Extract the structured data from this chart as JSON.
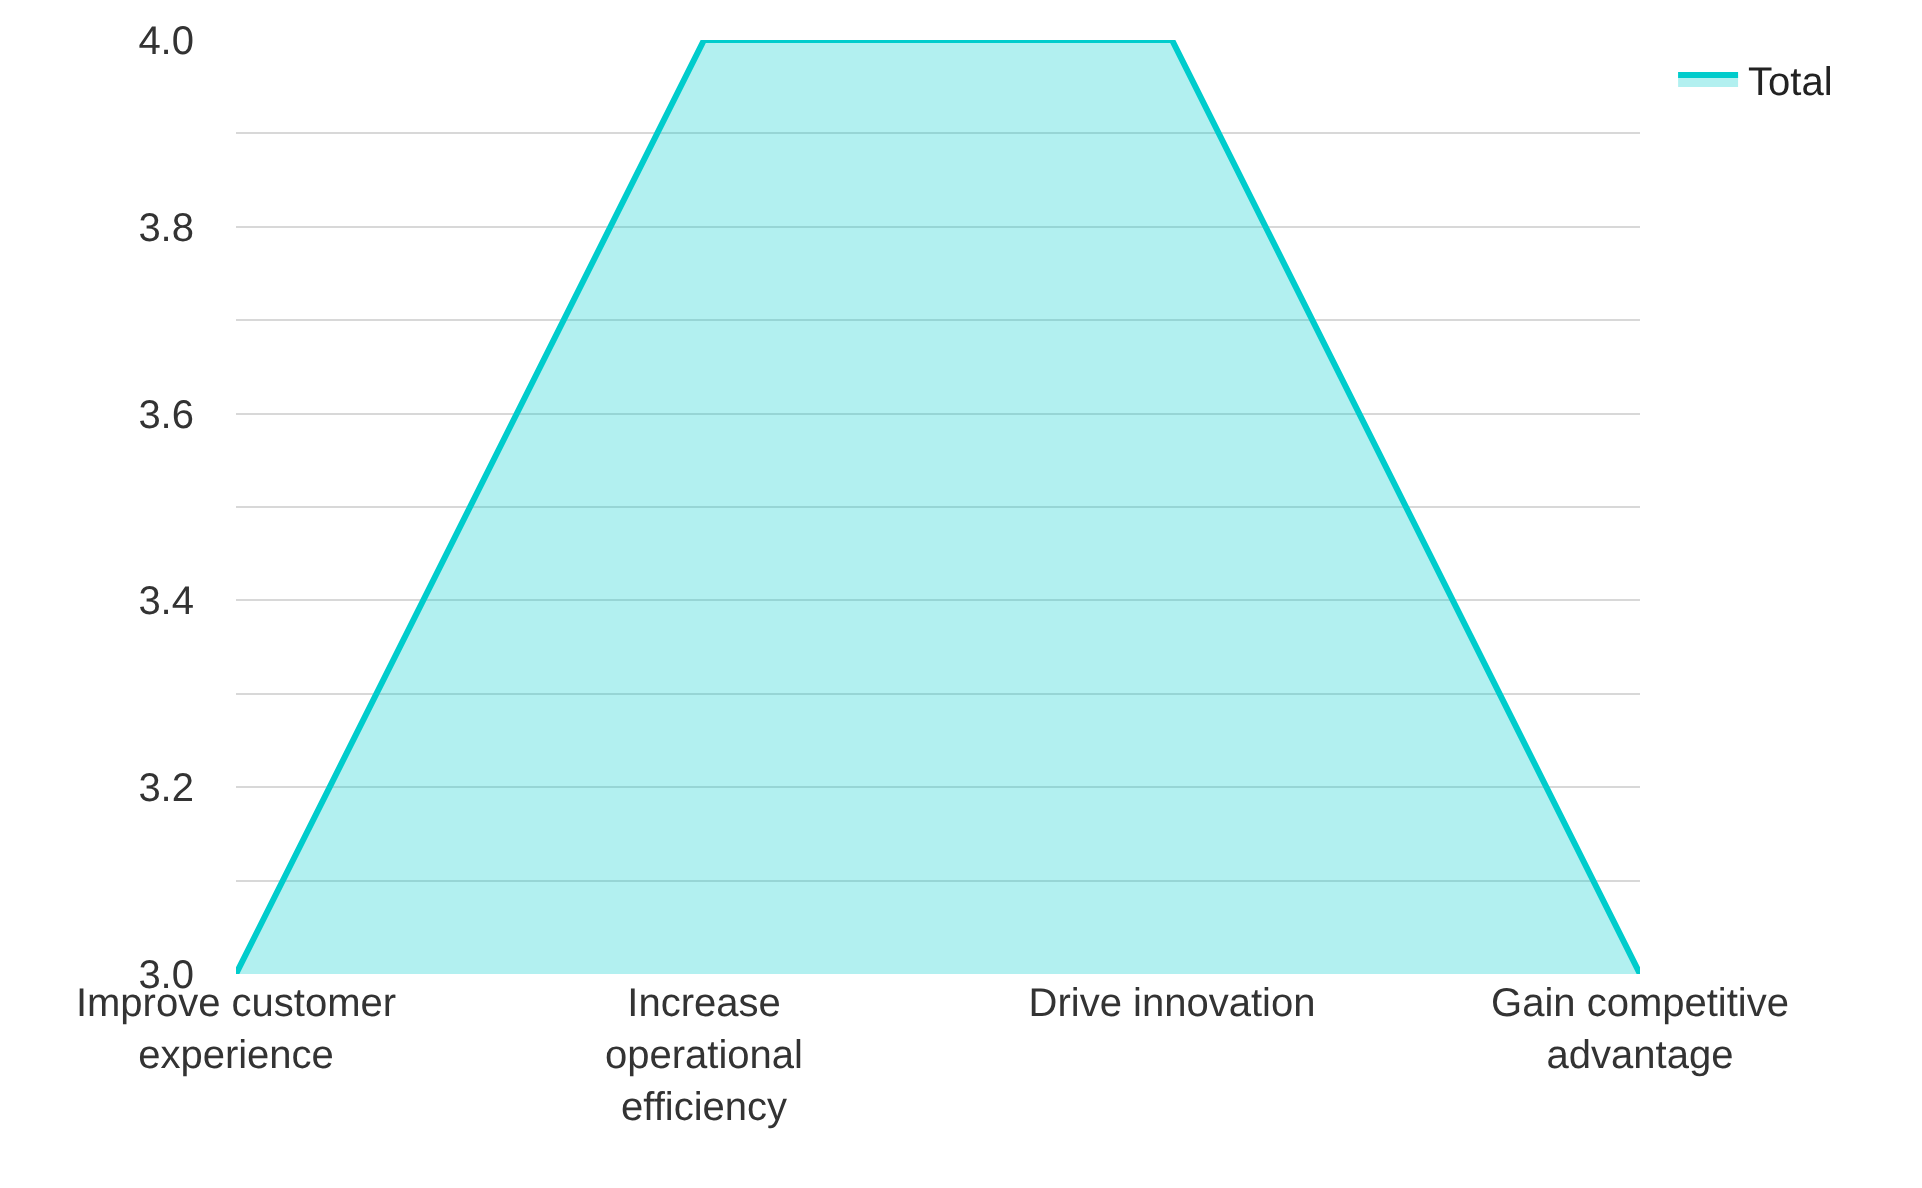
{
  "chart_data": {
    "type": "area",
    "categories": [
      "Improve customer experience",
      "Increase operational efficiency",
      "Drive innovation",
      "Gain competitive advantage"
    ],
    "series": [
      {
        "name": "Total",
        "color": "#00cccc",
        "values": [
          3.0,
          4.0,
          4.0,
          3.0
        ]
      }
    ],
    "ylim": [
      3.0,
      4.0
    ],
    "yticks": [
      {
        "value": 3.0,
        "label": "3.0"
      },
      {
        "value": 3.1,
        "label": null
      },
      {
        "value": 3.2,
        "label": "3.2"
      },
      {
        "value": 3.3,
        "label": null
      },
      {
        "value": 3.4,
        "label": "3.4"
      },
      {
        "value": 3.5,
        "label": null
      },
      {
        "value": 3.6,
        "label": "3.6"
      },
      {
        "value": 3.7,
        "label": null
      },
      {
        "value": 3.8,
        "label": "3.8"
      },
      {
        "value": 3.9,
        "label": null
      },
      {
        "value": 4.0,
        "label": "4.0"
      }
    ],
    "grid": "y",
    "legend": "top right"
  }
}
